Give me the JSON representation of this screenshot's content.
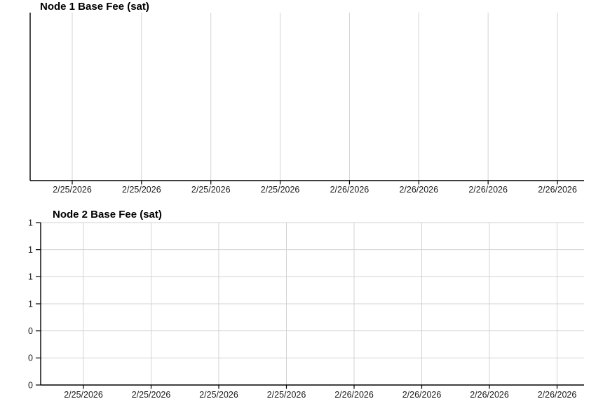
{
  "page": {
    "background_color": "#ffffff",
    "axis_color": "#000000",
    "gridline_color": "#d3d3d3",
    "tick_label_color": "#1a1a1a",
    "title_color": "#000000"
  },
  "chart_data": [
    {
      "type": "line",
      "title": "Node 1 Base Fee (sat)",
      "xlabel": "",
      "ylabel": "",
      "x_tick_labels": [
        "2/25/2026",
        "2/25/2026",
        "2/25/2026",
        "2/25/2026",
        "2/26/2026",
        "2/26/2026",
        "2/26/2026",
        "2/26/2026"
      ],
      "y_tick_labels": [],
      "series": [],
      "grid": "vertical-only",
      "legend": "none"
    },
    {
      "type": "line",
      "title": "Node 2 Base Fee (sat)",
      "xlabel": "",
      "ylabel": "",
      "x_tick_labels": [
        "2/25/2026",
        "2/25/2026",
        "2/25/2026",
        "2/25/2026",
        "2/26/2026",
        "2/26/2026",
        "2/26/2026",
        "2/26/2026"
      ],
      "y_tick_labels": [
        "1",
        "1",
        "1",
        "1",
        "0",
        "0",
        "0"
      ],
      "ylim": [
        0,
        1.2
      ],
      "series": [],
      "grid": "full",
      "legend": "none"
    }
  ]
}
